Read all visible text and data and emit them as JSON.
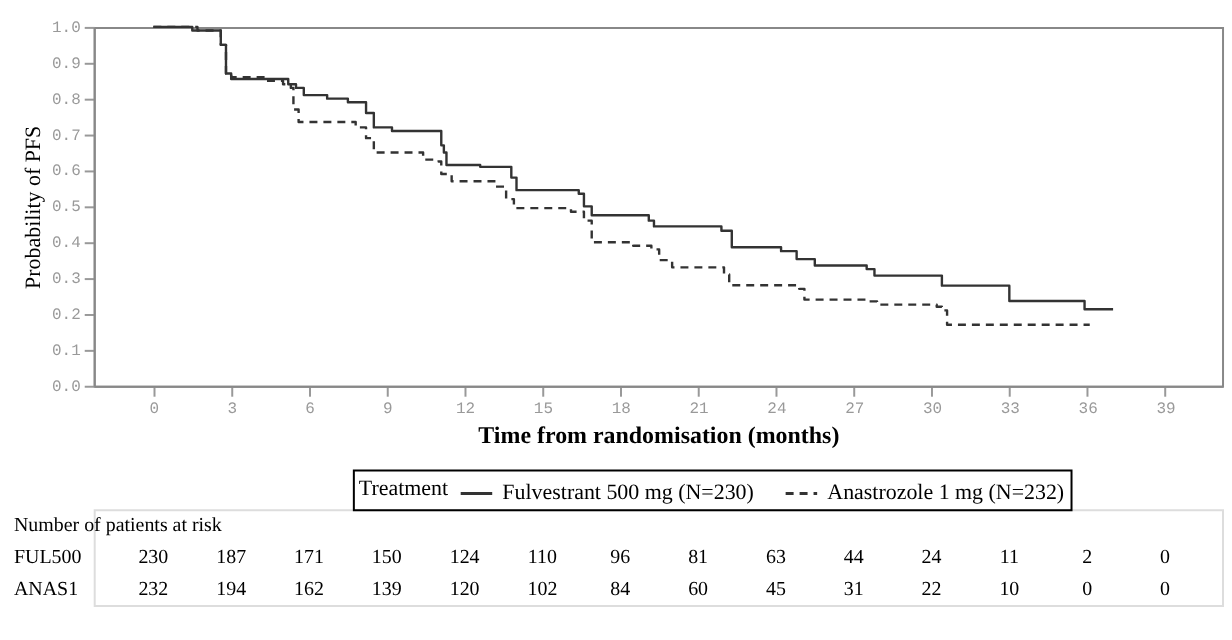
{
  "chart_data": {
    "type": "step",
    "xlabel": "Time from randomisation (months)",
    "ylabel": "Probability of PFS",
    "legend_title": "Treatment",
    "legend": "bottom",
    "grid": false,
    "xlim": [
      -2.3,
      41.2
    ],
    "xticks": [
      0,
      3,
      6,
      9,
      12,
      15,
      18,
      21,
      24,
      27,
      30,
      33,
      36,
      39
    ],
    "ylim": [
      0,
      1.0
    ],
    "yticks": [
      {
        "value": 0,
        "label": "0.0"
      },
      {
        "value": 0.1,
        "label": "0.1"
      },
      {
        "value": 0.2,
        "label": "0.2"
      },
      {
        "value": 0.3,
        "label": "0.3"
      },
      {
        "value": 0.4,
        "label": "0.4"
      },
      {
        "value": 0.5,
        "label": "0.5"
      },
      {
        "value": 0.6,
        "label": "0.6"
      },
      {
        "value": 0.7,
        "label": "0.7"
      },
      {
        "value": 0.8,
        "label": "0.8"
      },
      {
        "value": 0.9,
        "label": "0.9"
      },
      {
        "value": 1.0,
        "label": "1.0"
      }
    ],
    "series": [
      {
        "name": "Fulvestrant 500 mg (N=230)",
        "color": "#333333",
        "line_style": "solid",
        "x": [
          0,
          1.5,
          2.6,
          2.8,
          3.0,
          5.2,
          5.5,
          5.8,
          6.7,
          7.5,
          8.2,
          8.5,
          9.2,
          11.1,
          11.2,
          11.3,
          12.6,
          13.8,
          14.0,
          16.4,
          16.6,
          16.9,
          19.1,
          19.3,
          21.9,
          22.3,
          24.2,
          24.8,
          25.5,
          27.5,
          27.8,
          30.4,
          33.0,
          35.9,
          37.0
        ],
        "values": [
          1.0,
          0.99,
          0.95,
          0.87,
          0.855,
          0.84,
          0.83,
          0.81,
          0.8,
          0.79,
          0.76,
          0.72,
          0.71,
          0.67,
          0.65,
          0.615,
          0.61,
          0.58,
          0.545,
          0.535,
          0.5,
          0.475,
          0.46,
          0.444,
          0.432,
          0.386,
          0.375,
          0.353,
          0.335,
          0.325,
          0.307,
          0.279,
          0.236,
          0.213,
          0.213
        ]
      },
      {
        "name": "Anastrozole 1 mg (N=232)",
        "color": "#333333",
        "line_style": "dashed",
        "x": [
          0,
          1.7,
          2.6,
          2.8,
          3.0,
          4.3,
          5.0,
          5.3,
          5.4,
          5.6,
          7.8,
          8.2,
          8.5,
          10.4,
          11.0,
          11.1,
          11.5,
          13.2,
          13.6,
          13.9,
          16.1,
          16.6,
          16.9,
          18.5,
          19.2,
          19.5,
          20.0,
          22.0,
          22.2,
          24.9,
          25.1,
          27.6,
          27.9,
          30.2,
          30.4,
          30.6,
          36.1
        ],
        "values": [
          1.0,
          0.99,
          0.95,
          0.87,
          0.86,
          0.85,
          0.84,
          0.83,
          0.77,
          0.735,
          0.72,
          0.69,
          0.65,
          0.63,
          0.625,
          0.59,
          0.57,
          0.555,
          0.52,
          0.495,
          0.485,
          0.46,
          0.4,
          0.39,
          0.38,
          0.35,
          0.33,
          0.31,
          0.28,
          0.27,
          0.24,
          0.235,
          0.226,
          0.22,
          0.21,
          0.17,
          0.17
        ]
      }
    ],
    "annotations": [
      "Number of patients at risk",
      "FUL500",
      "230",
      "187",
      "171",
      "150",
      "124",
      "110",
      "96",
      "81",
      "63",
      "44",
      "24",
      "11",
      "2",
      "0",
      "ANAS1",
      "232",
      "194",
      "162",
      "139",
      "120",
      "102",
      "84",
      "60",
      "45",
      "31",
      "22",
      "10",
      "0",
      "0"
    ]
  }
}
